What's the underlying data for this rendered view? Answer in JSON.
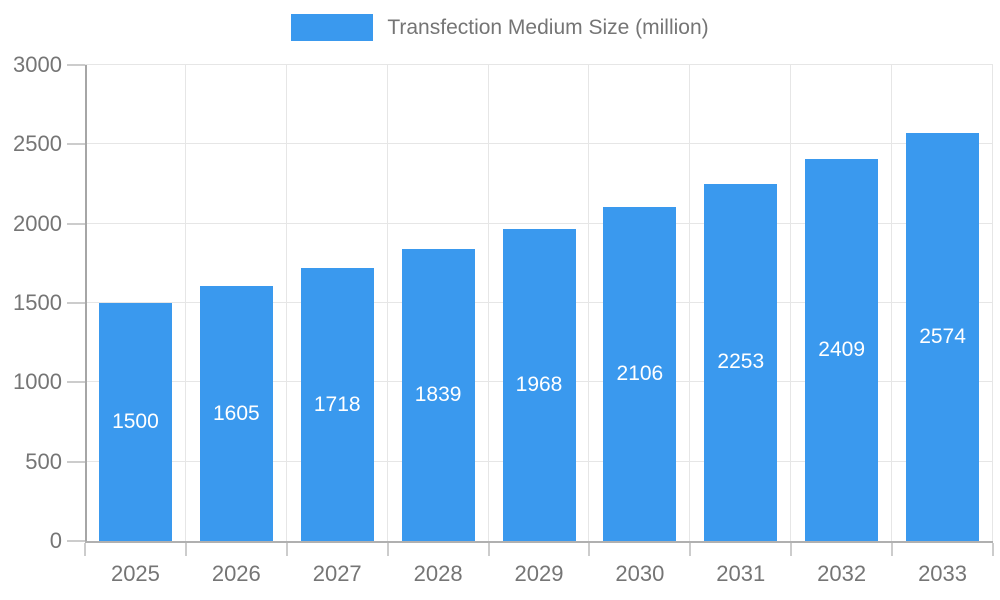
{
  "legend": {
    "label": "Transfection Medium Size (million)"
  },
  "colors": {
    "bar": "#3A99EE",
    "axis_text": "#757575",
    "grid_line": "#e6e6e6",
    "axis_line_y": "#a6a6a6",
    "axis_line_x": "#b0b0b0",
    "tick": "#cccccc",
    "value_label": "#ffffff",
    "background": "#ffffff"
  },
  "chart_data": {
    "type": "bar",
    "title": "",
    "xlabel": "",
    "ylabel": "",
    "series_name": "Transfection Medium Size (million)",
    "categories": [
      "2025",
      "2026",
      "2027",
      "2028",
      "2029",
      "2030",
      "2031",
      "2032",
      "2033"
    ],
    "values": [
      1500,
      1605,
      1718,
      1839,
      1968,
      2106,
      2253,
      2409,
      2574
    ],
    "value_labels_position": "inside-center",
    "ylim": [
      0,
      3000
    ],
    "yticks": [
      0,
      500,
      1000,
      1500,
      2000,
      2500,
      3000
    ],
    "grid": "horizontal-and-vertical",
    "legend_position": "top-center"
  }
}
